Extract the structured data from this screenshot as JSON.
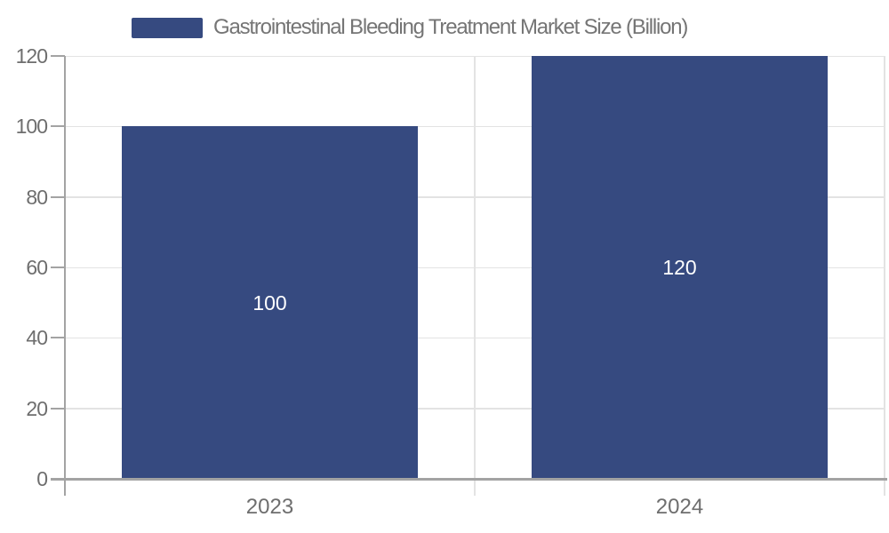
{
  "chart_data": {
    "type": "bar",
    "title": "Gastrointestinal Bleeding Treatment Market Size (Billion)",
    "legend_entries": [
      "Gastrointestinal Bleeding Treatment Market Size (Billion)"
    ],
    "categories": [
      "2023",
      "2024"
    ],
    "values": [
      100,
      120
    ],
    "ylim": [
      0,
      120
    ],
    "yticks": [
      0,
      20,
      40,
      60,
      80,
      100,
      120
    ],
    "grid": true,
    "legend_position": "top",
    "bar_label_position": "inside-center",
    "colors": {
      "bar": "#364A80",
      "axis_line": "#A3A3A3",
      "gridline": "#E3E3E3",
      "tick_label": "#6E6E6E",
      "legend_text": "#757575",
      "bar_label": "#FFFFFF",
      "background": "#FFFFFF"
    }
  }
}
